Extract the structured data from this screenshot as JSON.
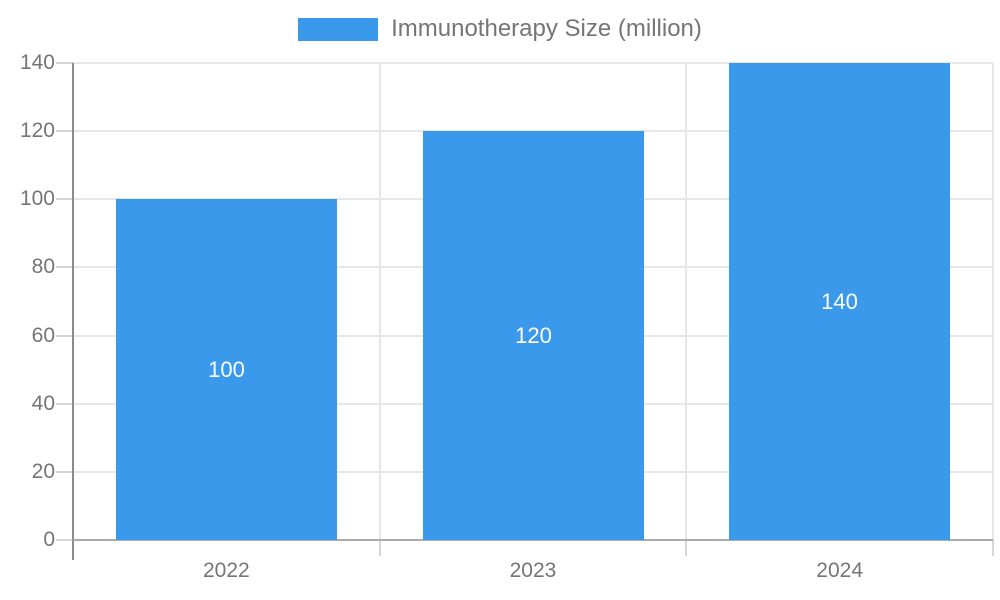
{
  "chart_data": {
    "type": "bar",
    "title": "",
    "categories": [
      "2022",
      "2023",
      "2024"
    ],
    "series": [
      {
        "name": "Immunotherapy Size (million)",
        "values": [
          100,
          120,
          140
        ]
      }
    ],
    "data_labels": [
      "100",
      "120",
      "140"
    ],
    "ylabel": "",
    "xlabel": "",
    "ylim": [
      0,
      140
    ],
    "yticks": [
      0,
      20,
      40,
      60,
      80,
      100,
      120,
      140
    ],
    "grid": true,
    "legend_position": "top-center",
    "legend": {
      "label": "Immunotherapy Size (million)"
    },
    "colors": {
      "bar": "#3b99ec",
      "data_label": "#ffffff",
      "axis_text": "#757575",
      "legend_text": "#757575",
      "gridline": "#e7e7e7",
      "tick": "#d6d6d6",
      "y_axis_line": "#8c8c8c",
      "x_axis_line": "#ababab",
      "background": "#ffffff"
    }
  }
}
